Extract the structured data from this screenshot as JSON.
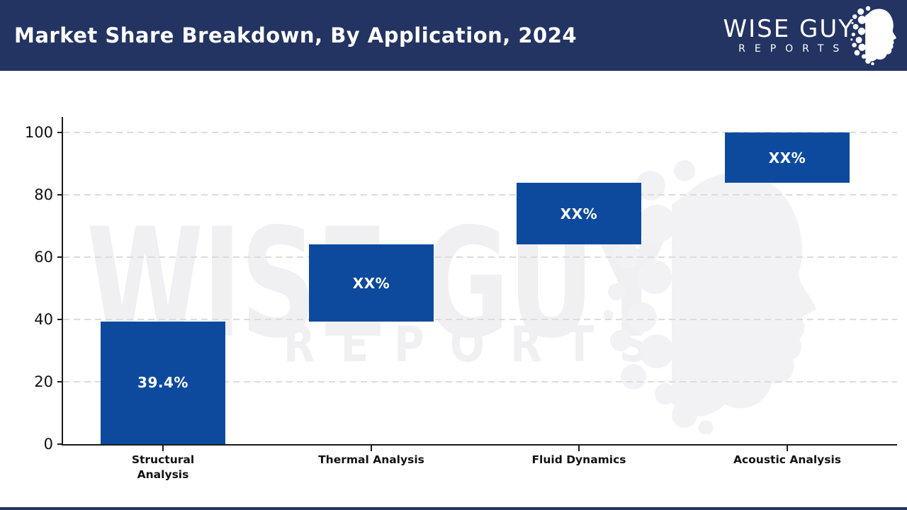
{
  "header": {
    "title": "Market Share Breakdown, By Application, 2024",
    "logo": {
      "primary": "WISE GUY",
      "secondary": "REPORTS"
    }
  },
  "watermark": {
    "primary": "WISE GUY",
    "secondary": "REPORTS"
  },
  "colors": {
    "header_bg": "#233462",
    "bar": "#0d4a9e",
    "axis": "#1a1a1a",
    "gridline": "#dcdcdc",
    "watermark": "#f0f0f3",
    "title_text": "#ffffff",
    "label_text": "#111111"
  },
  "chart_data": {
    "type": "bar",
    "subtype": "waterfall",
    "title": "Market Share Breakdown, By Application, 2024",
    "categories": [
      "Structural Analysis",
      "Thermal Analysis",
      "Fluid Dynamics",
      "Acoustic Analysis"
    ],
    "category_lines": [
      [
        "Structural",
        "Analysis"
      ],
      [
        "Thermal Analysis"
      ],
      [
        "Fluid Dynamics"
      ],
      [
        "Acoustic Analysis"
      ]
    ],
    "segments": [
      {
        "category": "Structural Analysis",
        "start": 0,
        "end": 39.4,
        "label": "39.4%"
      },
      {
        "category": "Thermal Analysis",
        "start": 39.4,
        "end": 64,
        "label": "XX%"
      },
      {
        "category": "Fluid Dynamics",
        "start": 64,
        "end": 83.8,
        "label": "XX%"
      },
      {
        "category": "Acoustic Analysis",
        "start": 83.8,
        "end": 100,
        "label": "XX%"
      }
    ],
    "yticks": [
      0,
      20,
      40,
      60,
      80,
      100
    ],
    "ylim": [
      0,
      105
    ],
    "xlabel": "",
    "ylabel": "",
    "grid": "horizontal-dashed",
    "legend": false
  }
}
